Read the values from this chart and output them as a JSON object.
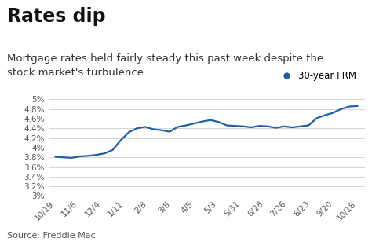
{
  "title": "Rates dip",
  "subtitle": "Mortgage rates held fairly steady this past week despite the\nstock market's turbulence",
  "source": "Source: Freddie Mac",
  "legend_label": "30-year FRM",
  "line_color": "#1f5fa6",
  "background_color": "#ffffff",
  "x_labels": [
    "10/19",
    "11/6",
    "12/4",
    "1/11",
    "2/8",
    "3/8",
    "4/5",
    "5/3",
    "5/31",
    "6/28",
    "7/26",
    "8/23",
    "9/20",
    "10/18"
  ],
  "y_values": [
    3.81,
    3.8,
    3.79,
    3.82,
    3.83,
    3.85,
    3.88,
    3.95,
    4.15,
    4.32,
    4.4,
    4.43,
    4.38,
    4.36,
    4.33,
    4.43,
    4.46,
    4.5,
    4.54,
    4.57,
    4.53,
    4.46,
    4.45,
    4.44,
    4.42,
    4.45,
    4.44,
    4.41,
    4.44,
    4.42,
    4.44,
    4.46,
    4.61,
    4.67,
    4.72,
    4.8,
    4.85,
    4.86
  ],
  "ylim": [
    3.0,
    5.0
  ],
  "ytick_values": [
    3.0,
    3.2,
    3.4,
    3.6,
    3.8,
    4.0,
    4.2,
    4.4,
    4.6,
    4.8,
    5.0
  ],
  "title_fontsize": 17,
  "subtitle_fontsize": 9.5,
  "source_fontsize": 8,
  "tick_fontsize": 7.5,
  "legend_fontsize": 8.5,
  "legend_marker_size": 7
}
